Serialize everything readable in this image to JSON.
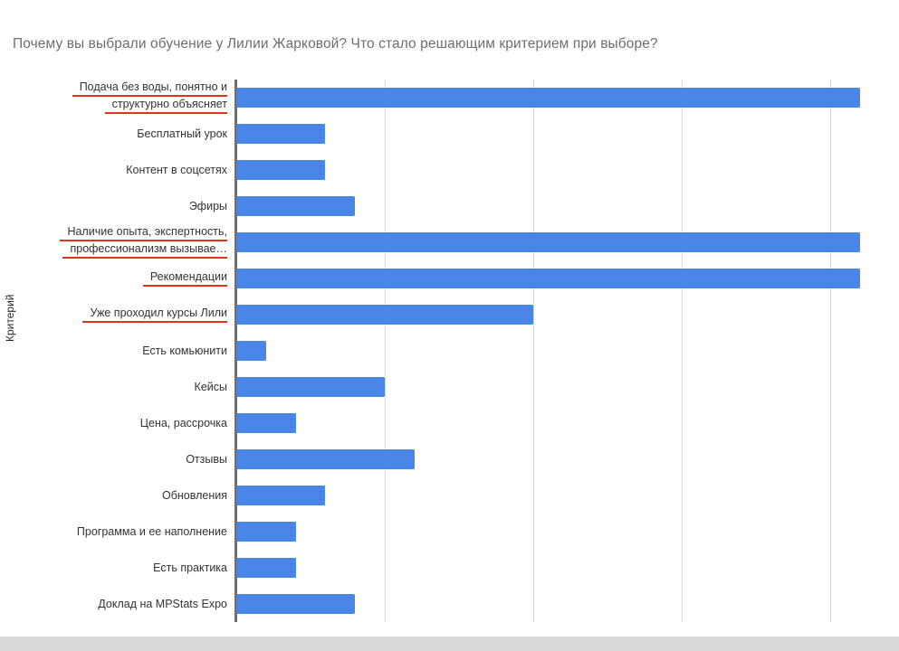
{
  "chart_data": {
    "type": "bar",
    "orientation": "horizontal",
    "title": "Почему вы выбрали обучение у Лилии Жарковой? Что стало решающим критерием при выборе?",
    "xlabel": "",
    "ylabel": "Критерий",
    "legend": false,
    "grid": true,
    "xlim": [
      0,
      22
    ],
    "gridlines": [
      5,
      10,
      15,
      20
    ],
    "bar_color": "#4a86e8",
    "annotation_underline_color": "#e0331a",
    "categories": [
      "Подача без воды, понятно и структурно объясняет",
      "Бесплатный урок",
      "Контент в соцсетях",
      "Эфиры",
      "Наличие опыта, экспертность, профессионализм вызывае…",
      "Рекомендации",
      "Уже проходил курсы Лили",
      "Есть комьюнити",
      "Кейсы",
      "Цена, рассрочка",
      "Отзывы",
      "Обновления",
      "Программа и ее наполнение",
      "Есть практика",
      "Доклад на MPStats Expo"
    ],
    "values": [
      21,
      3,
      3,
      4,
      21,
      21,
      10,
      1,
      5,
      2,
      6,
      3,
      2,
      2,
      4
    ],
    "label_lines": [
      [
        "Подача без воды, понятно и",
        "структурно объясняет"
      ],
      [
        "Бесплатный урок"
      ],
      [
        "Контент в соцсетях"
      ],
      [
        "Эфиры"
      ],
      [
        "Наличие опыта, экспертность,",
        "профессионализм вызывае…"
      ],
      [
        "Рекомендации"
      ],
      [
        "Уже проходил курсы Лили"
      ],
      [
        "Есть комьюнити"
      ],
      [
        "Кейсы"
      ],
      [
        "Цена, рассрочка"
      ],
      [
        "Отзывы"
      ],
      [
        "Обновления"
      ],
      [
        "Программа и ее наполнение"
      ],
      [
        "Есть практика"
      ],
      [
        "Доклад на MPStats Expo"
      ]
    ],
    "underlined_categories": [
      0,
      4,
      5,
      6
    ]
  }
}
